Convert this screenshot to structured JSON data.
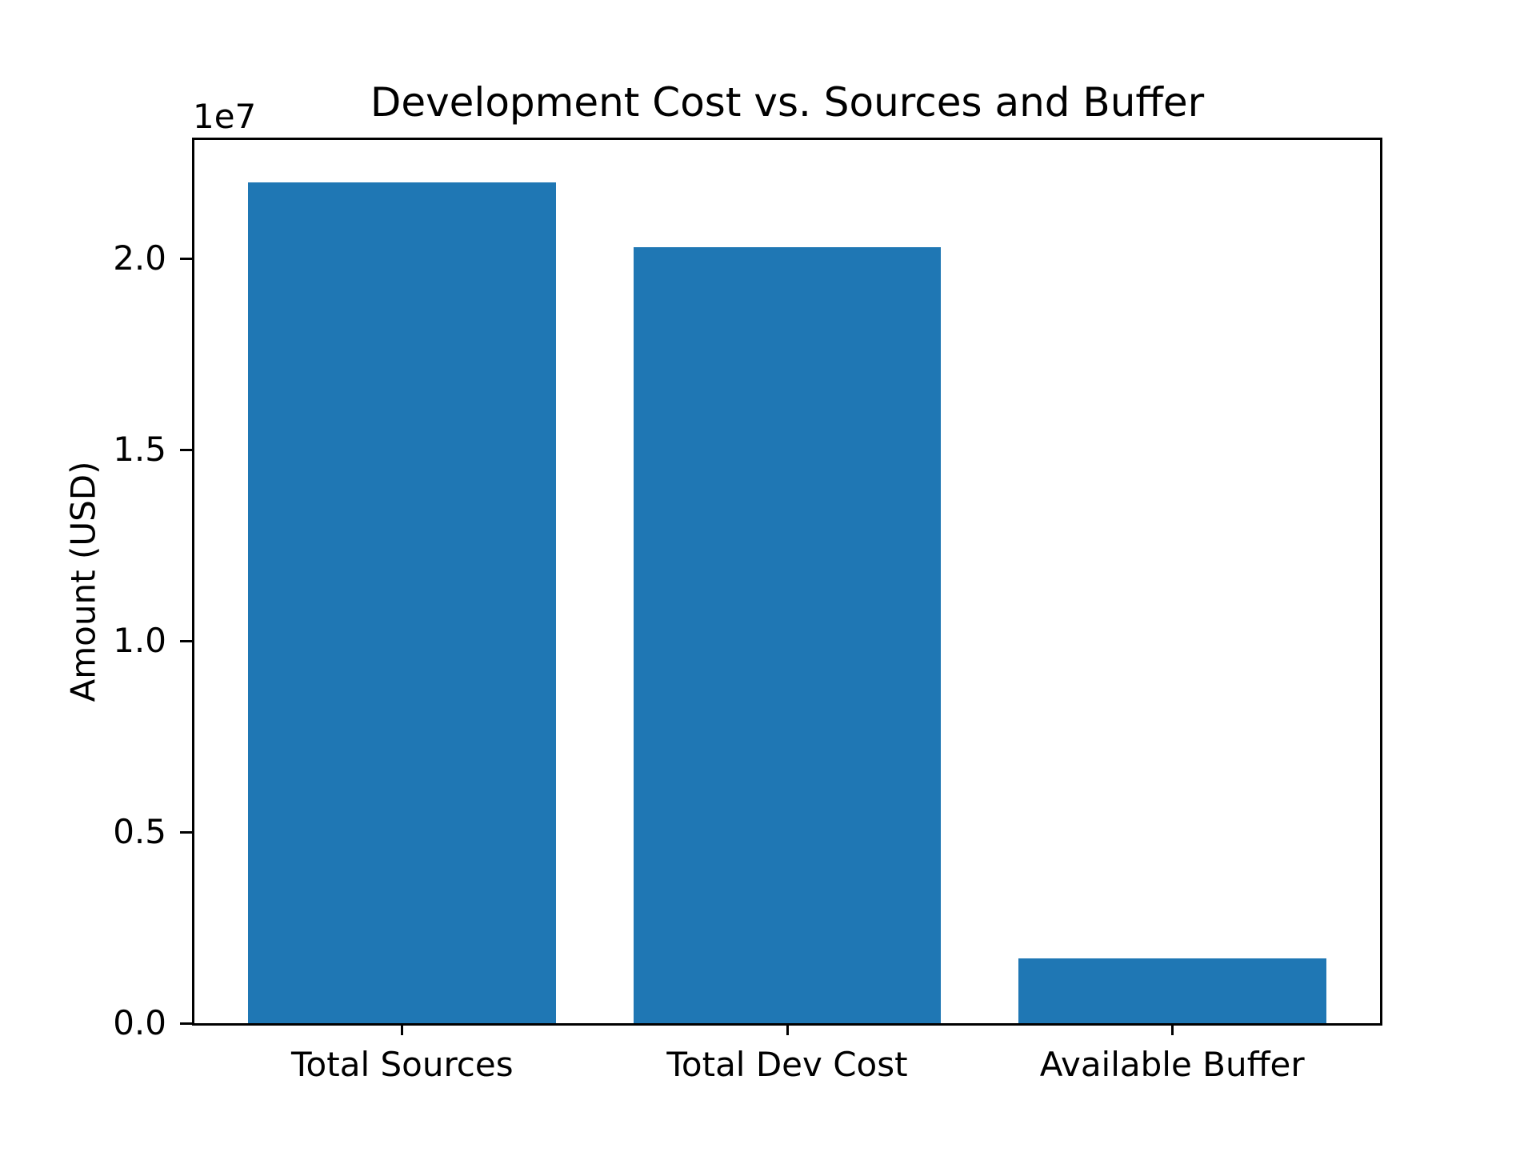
{
  "figure": {
    "background": "#ffffff",
    "text_color": "#000000"
  },
  "chart_data": {
    "type": "bar",
    "title": "Development Cost vs. Sources and Buffer",
    "xlabel": "",
    "ylabel": "Amount (USD)",
    "y_offset_label": "1e7",
    "categories": [
      "Total Sources",
      "Total Dev Cost",
      "Available Buffer"
    ],
    "values": [
      22000000,
      20300000,
      1700000
    ],
    "bar_color": "#1f77b4",
    "ylim": [
      0,
      23100000
    ],
    "yticks": {
      "values": [
        0,
        5000000,
        10000000,
        15000000,
        20000000
      ],
      "labels": [
        "0.0",
        "0.5",
        "1.0",
        "1.5",
        "2.0"
      ]
    },
    "grid": false,
    "legend": false
  }
}
